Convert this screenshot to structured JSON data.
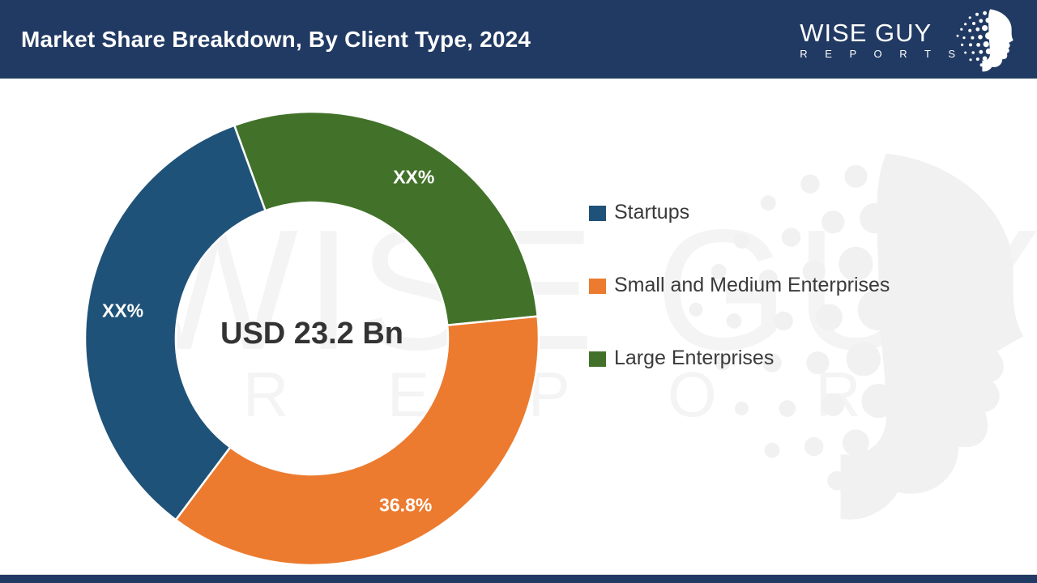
{
  "header": {
    "title": "Market Share Breakdown, By Client Type, 2024",
    "brand": {
      "line1": "WISE GUY",
      "line2": "R E P O R T S"
    }
  },
  "watermark": {
    "line1": "WISE GUY",
    "line2": "R E P O R T S"
  },
  "chart_data": {
    "type": "donut",
    "title": "Market Share Breakdown, By Client Type, 2024",
    "center_label": "USD 23.2 Bn",
    "start_angle_deg": -20,
    "draw_order": [
      2,
      1,
      0
    ],
    "segments": [
      {
        "name": "Startups",
        "label": "XX%",
        "value_pct": 34.2,
        "color": "#1F5278"
      },
      {
        "name": "Small and Medium Enterprises",
        "label": "36.8%",
        "value_pct": 36.8,
        "color": "#EC7B2F"
      },
      {
        "name": "Large Enterprises",
        "label": "XX%",
        "value_pct": 29.0,
        "color": "#42722A"
      }
    ],
    "geometry": {
      "outer_radius": 280,
      "inner_radius": 168,
      "label_radius": 236
    },
    "legend_position": "right",
    "colors": {
      "header_navy": "#213A63",
      "text_dark": "#333333",
      "watermark": "#f3f3f3"
    }
  }
}
